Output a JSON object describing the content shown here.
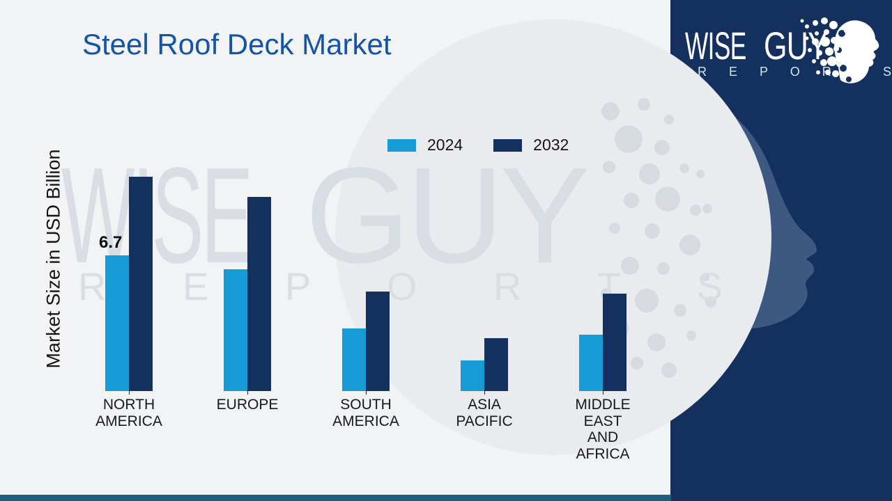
{
  "title": "Steel Roof Deck Market",
  "y_axis_label": "Market Size in USD Billion",
  "logo": {
    "line1a": "WISE",
    "line1b": "GUY",
    "line2": "R E P O R T S"
  },
  "watermark": {
    "line1a": "WISE",
    "line1b": "GUY",
    "line2": "R E P O R T S"
  },
  "icons": {
    "logo_face": "face-profile-icon",
    "logo_dots": "dissolve-dots",
    "watermark_dots": "dissolve-dots"
  },
  "colors": {
    "background": "#F2F3F4",
    "navy_panel": "#13305F",
    "bar_2024": "#169BD7",
    "bar_2032": "#13305F",
    "title_blue": "#1254A8",
    "teal_strip": "#1E5F7E",
    "watermark_gray": "#D9DDE4",
    "circle_gray": "#E9EBEE",
    "slate_face": "#3D5981"
  },
  "chart_data": {
    "type": "bar",
    "title": "Steel Roof Deck Market",
    "ylabel": "Market Size in USD Billion",
    "xlabel": "",
    "ylim": [
      0,
      11
    ],
    "grid": false,
    "legend_position": "top",
    "categories": [
      "NORTH AMERICA",
      "EUROPE",
      "SOUTH AMERICA",
      "ASIA PACIFIC",
      "MIDDLE EAST AND AFRICA"
    ],
    "category_lines": [
      [
        "NORTH",
        "AMERICA"
      ],
      [
        "EUROPE"
      ],
      [
        "SOUTH",
        "AMERICA"
      ],
      [
        "ASIA",
        "PACIFIC"
      ],
      [
        "MIDDLE",
        "EAST",
        "AND",
        "AFRICA"
      ]
    ],
    "series": [
      {
        "name": "2024",
        "color": "#169BD7",
        "values": [
          6.7,
          6.0,
          3.1,
          1.5,
          2.8
        ],
        "data_labels": [
          "6.7",
          null,
          null,
          null,
          null
        ]
      },
      {
        "name": "2032",
        "color": "#13305F",
        "values": [
          10.6,
          9.6,
          4.9,
          2.6,
          4.8
        ],
        "data_labels": [
          null,
          null,
          null,
          null,
          null
        ]
      }
    ]
  }
}
